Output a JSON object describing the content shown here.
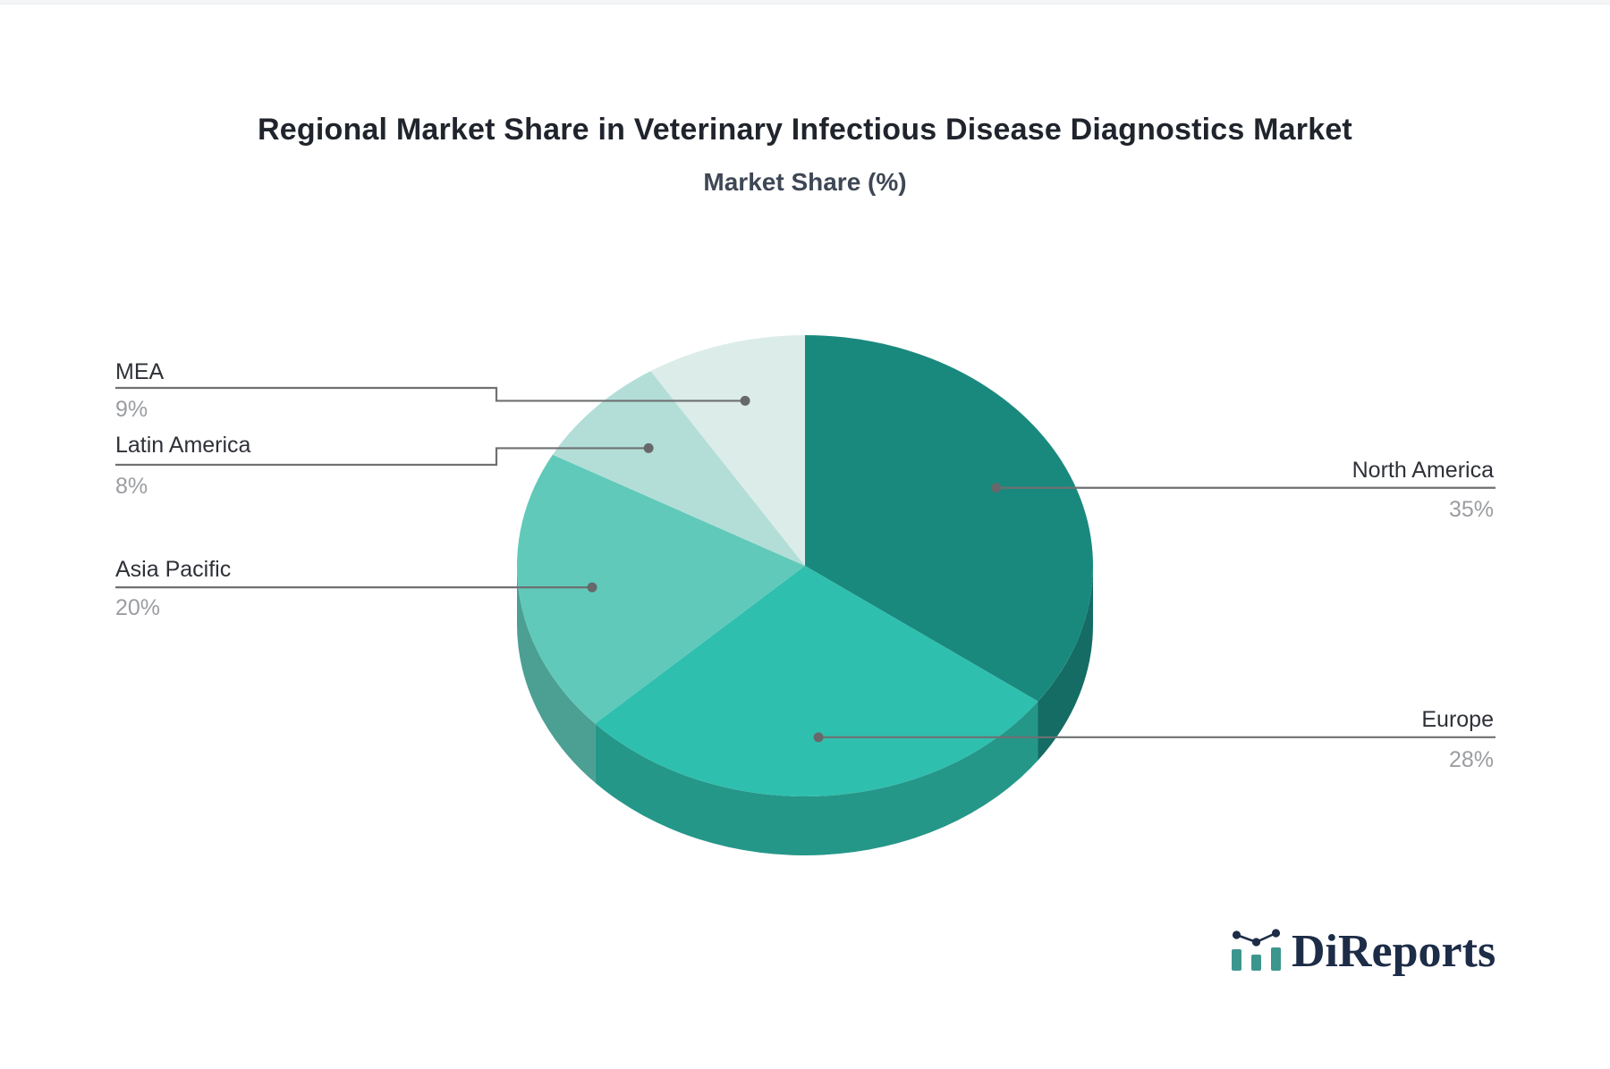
{
  "chart_data": {
    "type": "pie",
    "style": "3d",
    "title": "Regional Market Share in Veterinary Infectious Disease Diagnostics Market",
    "subtitle": "Market Share (%)",
    "unit": "%",
    "start_angle": "top",
    "direction": "clockwise",
    "legend_position": "callout-labels",
    "slices": [
      {
        "label": "North America",
        "value": 35,
        "display": "35%",
        "color": "#19897E"
      },
      {
        "label": "Europe",
        "value": 28,
        "display": "28%",
        "color": "#2FBFAE"
      },
      {
        "label": "Asia Pacific",
        "value": 20,
        "display": "20%",
        "color": "#60C9BA"
      },
      {
        "label": "Latin America",
        "value": 8,
        "display": "8%",
        "color": "#B3DED8"
      },
      {
        "label": "MEA",
        "value": 9,
        "display": "9%",
        "color": "#DCECE9"
      }
    ]
  },
  "colors": {
    "title": "#20242C",
    "subtitle": "#3E4755",
    "label_text": "#2F3138",
    "value_text": "#9B9DA1",
    "callout_line": "#6F7072",
    "brand_navy": "#1D2C47",
    "brand_teal": "#3D968E"
  },
  "branding": {
    "logo_text": "DiReports"
  }
}
